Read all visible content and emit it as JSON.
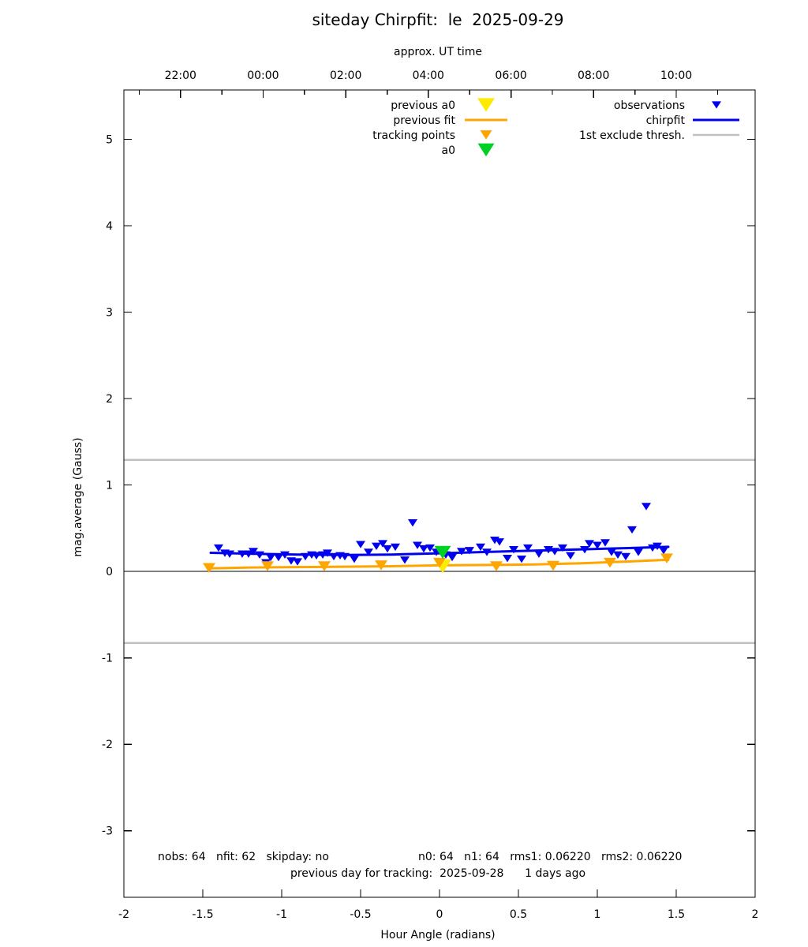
{
  "title": "siteday Chirpfit:  le  2025-09-29",
  "top_axis": {
    "label": "approx. UT time",
    "ticks": [
      {
        "ha": -1.903
      },
      {
        "ha": -1.641,
        "label": "22:00"
      },
      {
        "ha": -1.379
      },
      {
        "ha": -1.118,
        "label": "00:00"
      },
      {
        "ha": -0.856
      },
      {
        "ha": -0.594,
        "label": "02:00"
      },
      {
        "ha": -0.332
      },
      {
        "ha": -0.071,
        "label": "04:00"
      },
      {
        "ha": 0.191
      },
      {
        "ha": 0.453,
        "label": "06:00"
      },
      {
        "ha": 0.715
      },
      {
        "ha": 0.976,
        "label": "08:00"
      },
      {
        "ha": 1.238
      },
      {
        "ha": 1.5,
        "label": "10:00"
      },
      {
        "ha": 1.762
      }
    ]
  },
  "x_axis": {
    "label": "Hour Angle (radians)",
    "ticks": [
      {
        "v": -2,
        "label": "-2"
      },
      {
        "v": -1.5,
        "label": "-1.5"
      },
      {
        "v": -1,
        "label": "-1"
      },
      {
        "v": -0.5,
        "label": "-0.5"
      },
      {
        "v": 0,
        "label": "0"
      },
      {
        "v": 0.5,
        "label": "0.5"
      },
      {
        "v": 1,
        "label": "1"
      },
      {
        "v": 1.5,
        "label": "1.5"
      },
      {
        "v": 2,
        "label": "2"
      }
    ]
  },
  "y_axis": {
    "label": "mag.average (Gauss)",
    "ticks": [
      {
        "v": -3,
        "label": "-3"
      },
      {
        "v": -2,
        "label": "-2"
      },
      {
        "v": -1,
        "label": "-1"
      },
      {
        "v": 0,
        "label": "0"
      },
      {
        "v": 1,
        "label": "1"
      },
      {
        "v": 2,
        "label": "2"
      },
      {
        "v": 3,
        "label": "3"
      },
      {
        "v": 4,
        "label": "4"
      },
      {
        "v": 5,
        "label": "5"
      }
    ]
  },
  "legend": {
    "left": [
      {
        "label": "previous a0",
        "marker": "triangle",
        "color": "#ffeb00",
        "size": 22
      },
      {
        "label": "previous fit",
        "marker": "line",
        "color": "#ffa500"
      },
      {
        "label": "tracking points",
        "marker": "triangle",
        "color": "#ffa500",
        "size": 15
      },
      {
        "label": "a0",
        "marker": "triangle",
        "color": "#00d022",
        "size": 21
      }
    ],
    "right": [
      {
        "label": "observations",
        "marker": "triangle",
        "color": "#0000ee",
        "size": 12
      },
      {
        "label": "chirpfit",
        "marker": "line",
        "color": "#0000ee"
      },
      {
        "label": "1st exclude thresh.",
        "marker": "line",
        "color": "#c0c0c0"
      }
    ]
  },
  "stats": {
    "line1_left": "nobs: 64   nfit: 62   skipday: no",
    "line1_right": "n0: 64   n1: 64   rms1: 0.06220   rms2: 0.06220",
    "line2": "previous day for tracking:  2025-09-28      1 days ago"
  },
  "colors": {
    "observations": "#0000ee",
    "chirpfit": "#0000ee",
    "previous_fit": "#ffa500",
    "tracking_points": "#ffa500",
    "previous_a0": "#ffeb00",
    "a0": "#00d022",
    "exclude_threshold": "#c0c0c0",
    "axis": "#000000"
  },
  "chart_data": {
    "type": "scatter",
    "title": "siteday Chirpfit:  le  2025-09-29",
    "xlabel": "Hour Angle (radians)",
    "ylabel": "mag.average (Gauss)",
    "x2label": "approx. UT time",
    "xlim": [
      -2,
      2
    ],
    "ylim": [
      -3.77,
      5.57
    ],
    "grid": false,
    "legend_position": "top-inside",
    "series": [
      {
        "name": "1st exclude thresh.",
        "kind": "hline",
        "color": "#c0c0c0",
        "values": [
          1.29,
          -0.83
        ]
      },
      {
        "name": "previous fit",
        "kind": "line",
        "color": "#ffa500",
        "width": 3,
        "points": [
          [
            -1.47,
            0.035
          ],
          [
            -1.2,
            0.045
          ],
          [
            -0.9,
            0.05
          ],
          [
            -0.6,
            0.055
          ],
          [
            -0.3,
            0.06
          ],
          [
            0,
            0.07
          ],
          [
            0.3,
            0.075
          ],
          [
            0.6,
            0.08
          ],
          [
            0.9,
            0.095
          ],
          [
            1.2,
            0.115
          ],
          [
            1.45,
            0.135
          ]
        ]
      },
      {
        "name": "chirpfit",
        "kind": "line",
        "color": "#0000ee",
        "width": 3,
        "points": [
          [
            -1.45,
            0.215
          ],
          [
            -1.2,
            0.205
          ],
          [
            -0.9,
            0.195
          ],
          [
            -0.6,
            0.19
          ],
          [
            -0.3,
            0.195
          ],
          [
            0,
            0.21
          ],
          [
            0.3,
            0.225
          ],
          [
            0.6,
            0.24
          ],
          [
            0.9,
            0.255
          ],
          [
            1.2,
            0.27
          ],
          [
            1.45,
            0.285
          ]
        ]
      },
      {
        "name": "observations",
        "kind": "scatter",
        "marker": "triangle-down",
        "color": "#0000ee",
        "marker_size": 12,
        "points": [
          [
            -1.4,
            0.27
          ],
          [
            -1.36,
            0.21
          ],
          [
            -1.33,
            0.2
          ],
          [
            -1.25,
            0.2
          ],
          [
            -1.21,
            0.2
          ],
          [
            -1.18,
            0.23
          ],
          [
            -1.14,
            0.19
          ],
          [
            -1.1,
            0.1
          ],
          [
            -1.07,
            0.16
          ],
          [
            -1.02,
            0.16
          ],
          [
            -0.98,
            0.19
          ],
          [
            -0.94,
            0.12
          ],
          [
            -0.9,
            0.11
          ],
          [
            -0.85,
            0.17
          ],
          [
            -0.81,
            0.19
          ],
          [
            -0.78,
            0.18
          ],
          [
            -0.74,
            0.19
          ],
          [
            -0.71,
            0.21
          ],
          [
            -0.67,
            0.17
          ],
          [
            -0.63,
            0.18
          ],
          [
            -0.6,
            0.17
          ],
          [
            -0.54,
            0.14
          ],
          [
            -0.5,
            0.31
          ],
          [
            -0.45,
            0.22
          ],
          [
            -0.4,
            0.29
          ],
          [
            -0.36,
            0.32
          ],
          [
            -0.33,
            0.26
          ],
          [
            -0.28,
            0.28
          ],
          [
            -0.22,
            0.13
          ],
          [
            -0.17,
            0.56
          ],
          [
            -0.14,
            0.3
          ],
          [
            -0.1,
            0.26
          ],
          [
            -0.06,
            0.27
          ],
          [
            -0.02,
            0.22
          ],
          [
            0.04,
            0.19
          ],
          [
            0.08,
            0.16
          ],
          [
            0.14,
            0.23
          ],
          [
            0.19,
            0.24
          ],
          [
            0.26,
            0.28
          ],
          [
            0.3,
            0.22
          ],
          [
            0.35,
            0.36
          ],
          [
            0.38,
            0.34
          ],
          [
            0.43,
            0.15
          ],
          [
            0.47,
            0.25
          ],
          [
            0.52,
            0.14
          ],
          [
            0.56,
            0.27
          ],
          [
            0.63,
            0.2
          ],
          [
            0.69,
            0.25
          ],
          [
            0.73,
            0.23
          ],
          [
            0.78,
            0.27
          ],
          [
            0.83,
            0.18
          ],
          [
            0.92,
            0.25
          ],
          [
            0.95,
            0.32
          ],
          [
            1.0,
            0.3
          ],
          [
            1.05,
            0.33
          ],
          [
            1.09,
            0.22
          ],
          [
            1.13,
            0.19
          ],
          [
            1.18,
            0.17
          ],
          [
            1.22,
            0.48
          ],
          [
            1.26,
            0.22
          ],
          [
            1.31,
            0.75
          ],
          [
            1.35,
            0.27
          ],
          [
            1.38,
            0.29
          ],
          [
            1.42,
            0.24
          ]
        ]
      },
      {
        "name": "previous a0",
        "kind": "scatter",
        "marker": "triangle-down",
        "color": "#ffeb00",
        "marker_size": 22,
        "points": [
          [
            0.02,
            0.06
          ]
        ]
      },
      {
        "name": "tracking points",
        "kind": "scatter",
        "marker": "triangle-down",
        "color": "#ffa500",
        "marker_size": 16,
        "points": [
          [
            -1.46,
            0.04
          ],
          [
            -1.09,
            0.06
          ],
          [
            -0.73,
            0.06
          ],
          [
            -0.37,
            0.07
          ],
          [
            0.0,
            0.1
          ],
          [
            0.36,
            0.06
          ],
          [
            0.72,
            0.065
          ],
          [
            1.08,
            0.1
          ],
          [
            1.44,
            0.15
          ]
        ]
      },
      {
        "name": "a0",
        "kind": "scatter",
        "marker": "triangle-down",
        "color": "#00d022",
        "marker_size": 21,
        "points": [
          [
            0.02,
            0.22
          ]
        ]
      }
    ]
  }
}
